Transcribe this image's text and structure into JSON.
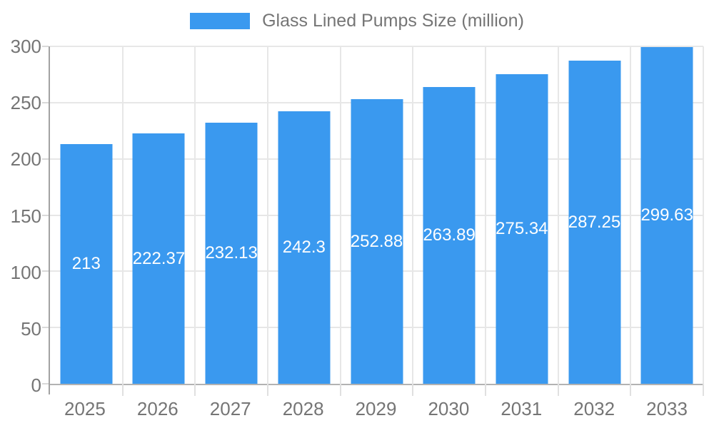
{
  "chart_data": {
    "type": "bar",
    "title": "",
    "categories": [
      "2025",
      "2026",
      "2027",
      "2028",
      "2029",
      "2030",
      "2031",
      "2032",
      "2033"
    ],
    "series": [
      {
        "name": "Glass Lined Pumps Size (million)",
        "values": [
          213,
          222.37,
          232.13,
          242.3,
          252.88,
          263.89,
          275.34,
          287.25,
          299.63
        ]
      }
    ],
    "value_labels": [
      "213",
      "222.37",
      "232.13",
      "242.3",
      "252.88",
      "263.89",
      "275.34",
      "287.25",
      "299.63"
    ],
    "xlabel": "",
    "ylabel": "",
    "ylim": [
      0,
      300
    ],
    "yticks": [
      0,
      50,
      100,
      150,
      200,
      250,
      300
    ],
    "grid": true,
    "legend_position": "top-center",
    "colors": {
      "bar": "#3A99EF",
      "axis_text": "#757575",
      "legend_text": "#757575",
      "value_label_text": "#FFFFFF",
      "grid_line": "#E7E7E7",
      "axis_line": "#A2A2A2"
    }
  }
}
